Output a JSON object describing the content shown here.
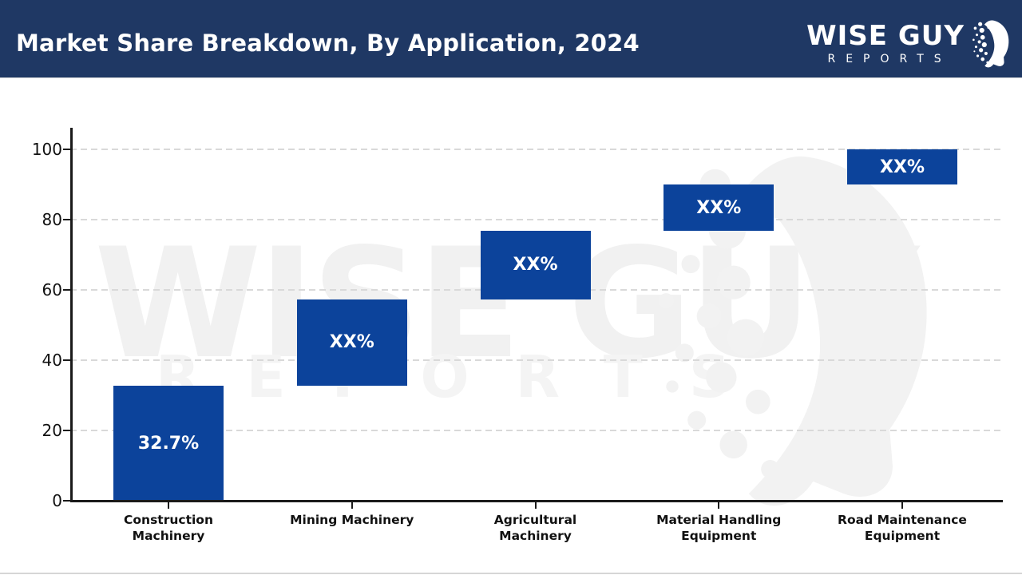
{
  "header": {
    "title": "Market Share Breakdown, By Application, 2024",
    "bg_color": "#1f3864",
    "logo": {
      "line1": "WISE GUY",
      "line2": "REPORTS"
    }
  },
  "watermark": {
    "line1": "WISE GUY",
    "line2": "REPORTS"
  },
  "chart_data": {
    "type": "bar",
    "subtype": "waterfall",
    "title": "Market Share Breakdown, By Application, 2024",
    "categories": [
      "Construction Machinery",
      "Mining Machinery",
      "Agricultural Machinery",
      "Material Handling Equipment",
      "Road Maintenance Equipment"
    ],
    "category_lines": [
      [
        "Construction",
        "Machinery"
      ],
      [
        "Mining Machinery"
      ],
      [
        "Agricultural",
        "Machinery"
      ],
      [
        "Material Handling",
        "Equipment"
      ],
      [
        "Road Maintenance",
        "Equipment"
      ]
    ],
    "series": [
      {
        "name": "Market Share",
        "segments": [
          {
            "category": "Construction Machinery",
            "start": 0,
            "end": 32.7,
            "value": 32.7,
            "label": "32.7%"
          },
          {
            "category": "Mining Machinery",
            "start": 32.7,
            "end": 57.3,
            "value": 24.6,
            "label": "XX%"
          },
          {
            "category": "Agricultural Machinery",
            "start": 57.3,
            "end": 76.8,
            "value": 19.5,
            "label": "XX%"
          },
          {
            "category": "Material Handling Equipment",
            "start": 76.8,
            "end": 90,
            "value": 13.2,
            "label": "XX%"
          },
          {
            "category": "Road Maintenance Equipment",
            "start": 90,
            "end": 100,
            "value": 10,
            "label": "XX%"
          }
        ]
      }
    ],
    "xlabel": "",
    "ylabel": "",
    "ylim": [
      0,
      100
    ],
    "yticks": [
      0,
      20,
      40,
      60,
      80,
      100
    ],
    "grid": "horizontal-dashed",
    "legend": "none",
    "bar_color": "#0c439b",
    "bar_label_color": "#ffffff",
    "axis_color": "#1a1a1a",
    "gridline_color": "#d9d9d9"
  }
}
